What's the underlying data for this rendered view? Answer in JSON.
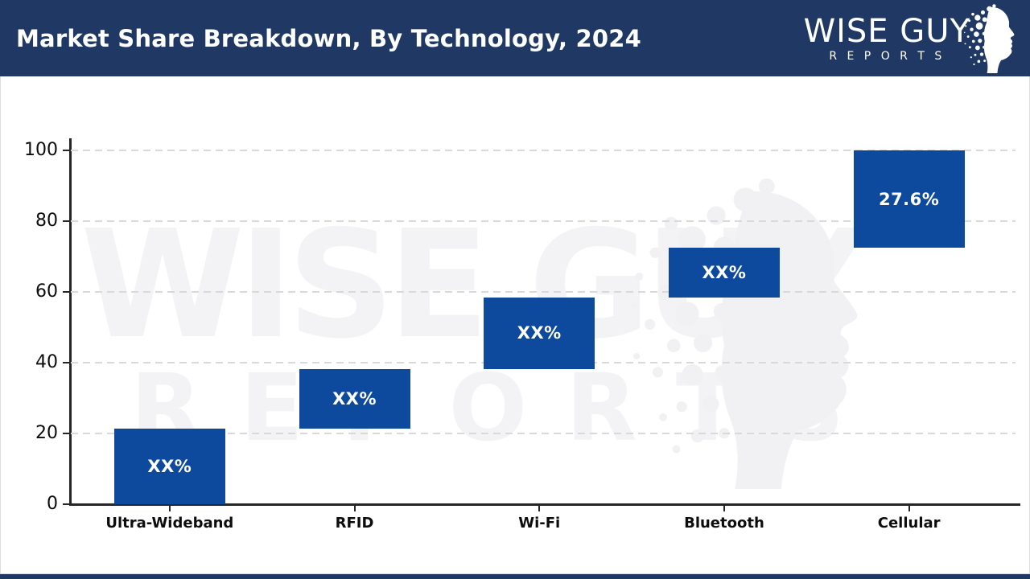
{
  "header": {
    "title": "Market Share Breakdown, By Technology, 2024",
    "logo": {
      "wordmark": "WISE GUY",
      "subtext": "R E P O R T S"
    }
  },
  "watermark": {
    "wordmark": "WISE GUY",
    "subtext": "R E P O R T S"
  },
  "chart_data": {
    "type": "bar",
    "subtype": "floating-waterfall-segments",
    "title": "Market Share Breakdown, By Technology, 2024",
    "categories": [
      "Ultra-Wideband",
      "RFID",
      "Wi-Fi",
      "Bluetooth",
      "Cellular"
    ],
    "segments": [
      {
        "category": "Ultra-Wideband",
        "start": 0,
        "end": 21.4,
        "label": "XX%"
      },
      {
        "category": "RFID",
        "start": 21.4,
        "end": 38.2,
        "label": "XX%"
      },
      {
        "category": "Wi-Fi",
        "start": 38.2,
        "end": 58.4,
        "label": "XX%"
      },
      {
        "category": "Bluetooth",
        "start": 58.4,
        "end": 72.4,
        "label": "XX%"
      },
      {
        "category": "Cellular",
        "start": 72.4,
        "end": 100,
        "label": "27.6%"
      }
    ],
    "yticks": [
      0,
      20,
      40,
      60,
      80,
      100
    ],
    "ylim": [
      0,
      100
    ],
    "xlabel": "",
    "ylabel": "",
    "grid": "horizontal-dashed",
    "legend": false,
    "colors": {
      "bar": "#0d4a9e",
      "bar_label": "#ffffff",
      "header_bg": "#1f3864",
      "grid": "#d9d9d9",
      "axis": "#262626",
      "watermark": "#f3f3f5"
    }
  }
}
